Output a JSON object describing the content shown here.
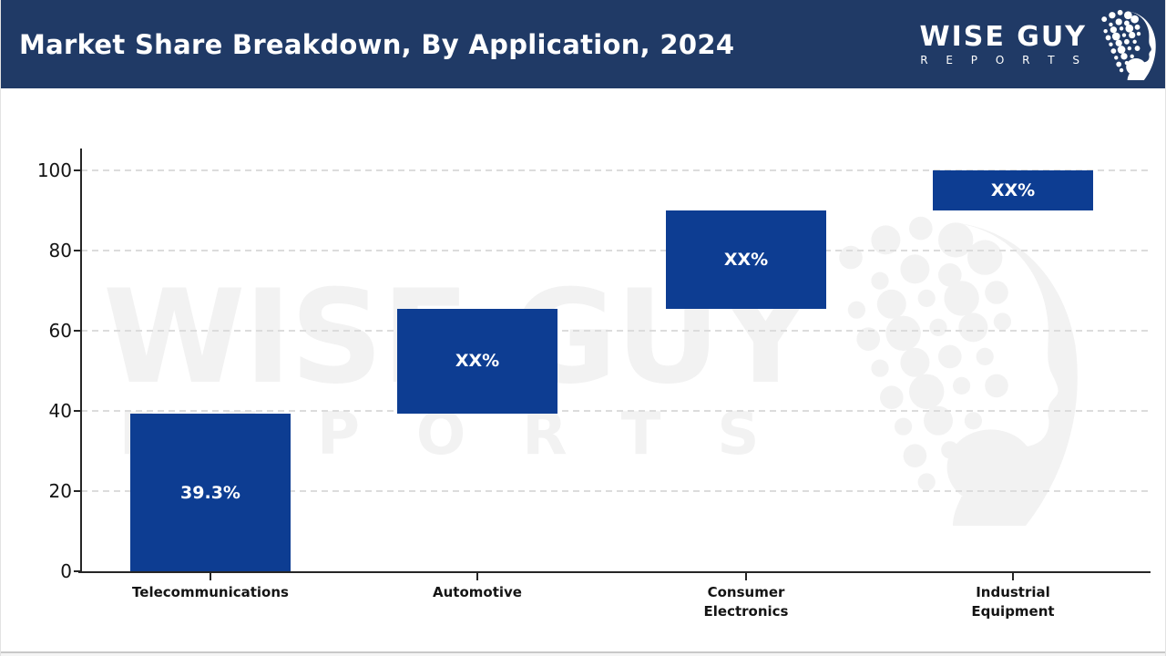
{
  "header": {
    "title": "Market Share Breakdown, By Application, 2024",
    "bg_color": "#203a66",
    "logo": {
      "line1": "WISE GUY",
      "line2": "R E P O R T S",
      "head_icon": "dotted-head-profile"
    }
  },
  "watermark": {
    "line1": "WISE GUY",
    "line2": "REPORTS",
    "color": "#f2f2f2"
  },
  "chart_data": {
    "type": "bar",
    "subtype": "waterfall-stacked-segments",
    "title": "Market Share Breakdown, By Application, 2024",
    "categories": [
      "Telecommunications",
      "Automotive",
      "Consumer Electronics",
      "Industrial Equipment"
    ],
    "categories_display": [
      "Telecommunications",
      "Automotive",
      "Consumer\nElectronics",
      "Industrial\nEquipment"
    ],
    "series": [
      {
        "name": "Market Share (%)",
        "segments": [
          {
            "start": 0,
            "end": 39.3,
            "value": 39.3,
            "label": "39.3%"
          },
          {
            "start": 39.3,
            "end": 65.5,
            "value": 26.2,
            "label": "XX%"
          },
          {
            "start": 65.5,
            "end": 90.0,
            "value": 24.5,
            "label": "XX%"
          },
          {
            "start": 90.0,
            "end": 100.0,
            "value": 10.0,
            "label": "XX%"
          }
        ]
      }
    ],
    "xlabel": "",
    "ylabel": "",
    "ylim": [
      0,
      105
    ],
    "yticks": [
      0,
      20,
      40,
      60,
      80,
      100
    ],
    "grid": "horizontal-dashed",
    "gridline_color": "#dcdcdc",
    "bar_color": "#0d3d92",
    "bar_label_color": "#ffffff",
    "legend": "none"
  }
}
